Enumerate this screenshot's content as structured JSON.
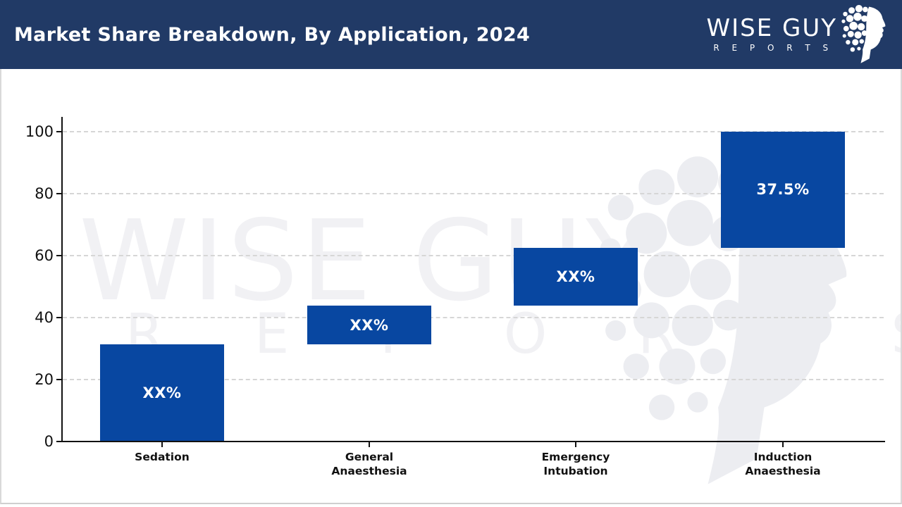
{
  "header": {
    "title": "Market Share Breakdown, By Application, 2024",
    "logo": {
      "line1": "WISE GUY",
      "line2": "R E P O R T S"
    }
  },
  "watermark": {
    "line1": "WISE GUY",
    "line2": "R E P O R T S"
  },
  "colors": {
    "header_bg": "#213a66",
    "bar": "#0847a1",
    "grid": "#d6d6d6",
    "axis": "#111111",
    "bar_label": "#ffffff",
    "watermark": "#f1f1f4"
  },
  "chart_data": {
    "type": "bar",
    "subtype": "waterfall-floating-bars",
    "title": "Market Share Breakdown, By Application, 2024",
    "unit": "%",
    "categories": [
      "Sedation",
      "General Anaesthesia",
      "Emergency Intubation",
      "Induction Anaesthesia"
    ],
    "category_lines": [
      [
        "Sedation"
      ],
      [
        "General",
        "Anaesthesia"
      ],
      [
        "Emergency",
        "Intubation"
      ],
      [
        "Induction",
        "Anaesthesia"
      ]
    ],
    "segments": [
      {
        "category": "Sedation",
        "start": 0,
        "end": 31.25,
        "size": 31.25,
        "label": "XX%"
      },
      {
        "category": "General Anaesthesia",
        "start": 31.25,
        "end": 43.75,
        "size": 12.5,
        "label": "XX%"
      },
      {
        "category": "Emergency Intubation",
        "start": 43.75,
        "end": 62.5,
        "size": 18.75,
        "label": "XX%"
      },
      {
        "category": "Induction Anaesthesia",
        "start": 62.5,
        "end": 100,
        "size": 37.5,
        "label": "37.5%"
      }
    ],
    "segment_sizes": [
      31.25,
      12.5,
      18.75,
      37.5
    ],
    "yticks": [
      0,
      20,
      40,
      60,
      80,
      100
    ],
    "ylim": [
      0,
      105
    ],
    "xlabel": "",
    "ylabel": "",
    "grid": "dashed-horizontal",
    "legend": "none"
  }
}
